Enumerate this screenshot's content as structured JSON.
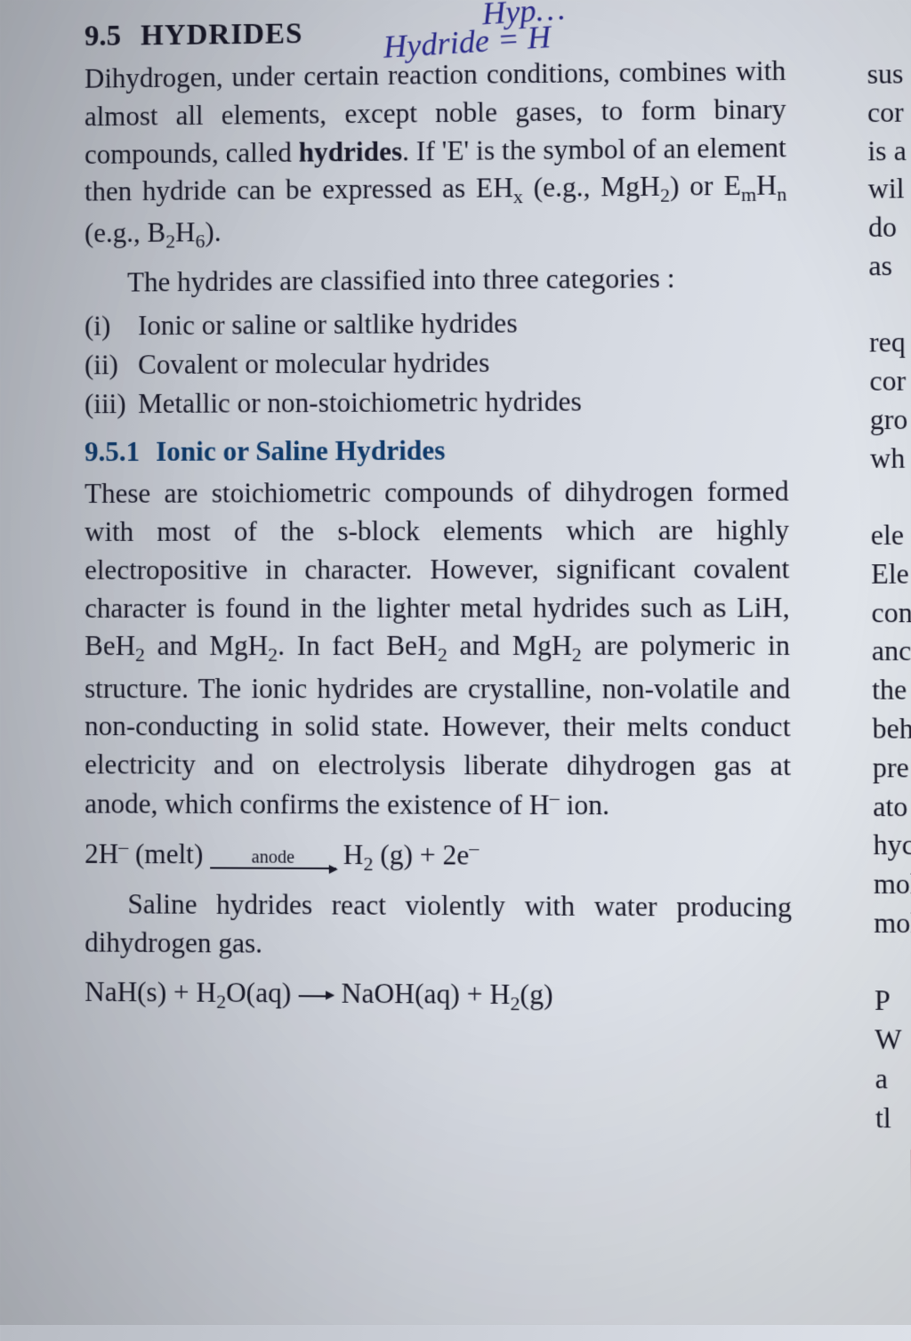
{
  "handwriting": {
    "top": "Hyp…",
    "main": "Hydride = H"
  },
  "section": {
    "number": "9.5",
    "title": "HYDRIDES",
    "para1_html": "Dihydrogen, under certain reaction conditions, combines with almost all elements, except noble gases, to form binary compounds, called <span class='bold'>hydrides</span>. If 'E' is the symbol of an element then hydride can be expressed as EH<sub>x</sub> (e.g., MgH<sub>2</sub>) or E<sub>m</sub>H<sub>n</sub> (e.g., B<sub>2</sub>H<sub>6</sub>).",
    "para2": "The hydrides are classified into three categories :",
    "list": [
      {
        "marker": "(i)",
        "text": "Ionic or saline or saltlike hydrides"
      },
      {
        "marker": "(ii)",
        "text": "Covalent or molecular hydrides"
      },
      {
        "marker": "(iii)",
        "text": "Metallic or non-stoichiometric hydrides"
      }
    ]
  },
  "subsection": {
    "number": "9.5.1",
    "title": "Ionic or Saline Hydrides",
    "para_html": "These are stoichiometric compounds of dihydrogen formed with most of the s-block elements which are highly electropositive in character. However, significant covalent character is found in the lighter metal hydrides such as LiH, BeH<sub>2</sub> and MgH<sub>2</sub>. In fact BeH<sub>2</sub> and MgH<sub>2</sub> are polymeric in structure. The ionic hydrides are crystalline, non-volatile and non-conducting in solid state. However, their melts conduct electricity and on electrolysis liberate dihydrogen gas at anode, which confirms the existence of H<sup>–</sup> ion.",
    "eq1": {
      "lhs": "2H<sup>–</sup> (melt)",
      "arrow_label": "anode",
      "rhs": "H<sub>2</sub> (g) + 2e<sup>–</sup>"
    },
    "para2": "Saline hydrides react violently with water producing dihydrogen gas.",
    "eq2": {
      "lhs": "NaH(s) + H<sub>2</sub>O(aq)",
      "rhs": "NaOH(aq) + H<sub>2</sub>(g)"
    }
  },
  "right_cut_fragments": [
    "sus",
    "cor",
    "is a",
    "wil",
    "do",
    "as",
    "",
    "req",
    "cor",
    "gro",
    "wh",
    "",
    "ele",
    "Ele",
    "con",
    "anc",
    "the",
    "beh",
    "pre",
    "ato",
    "hyc",
    "mol",
    "mol",
    "",
    "P",
    "W",
    "a",
    "tl"
  ]
}
